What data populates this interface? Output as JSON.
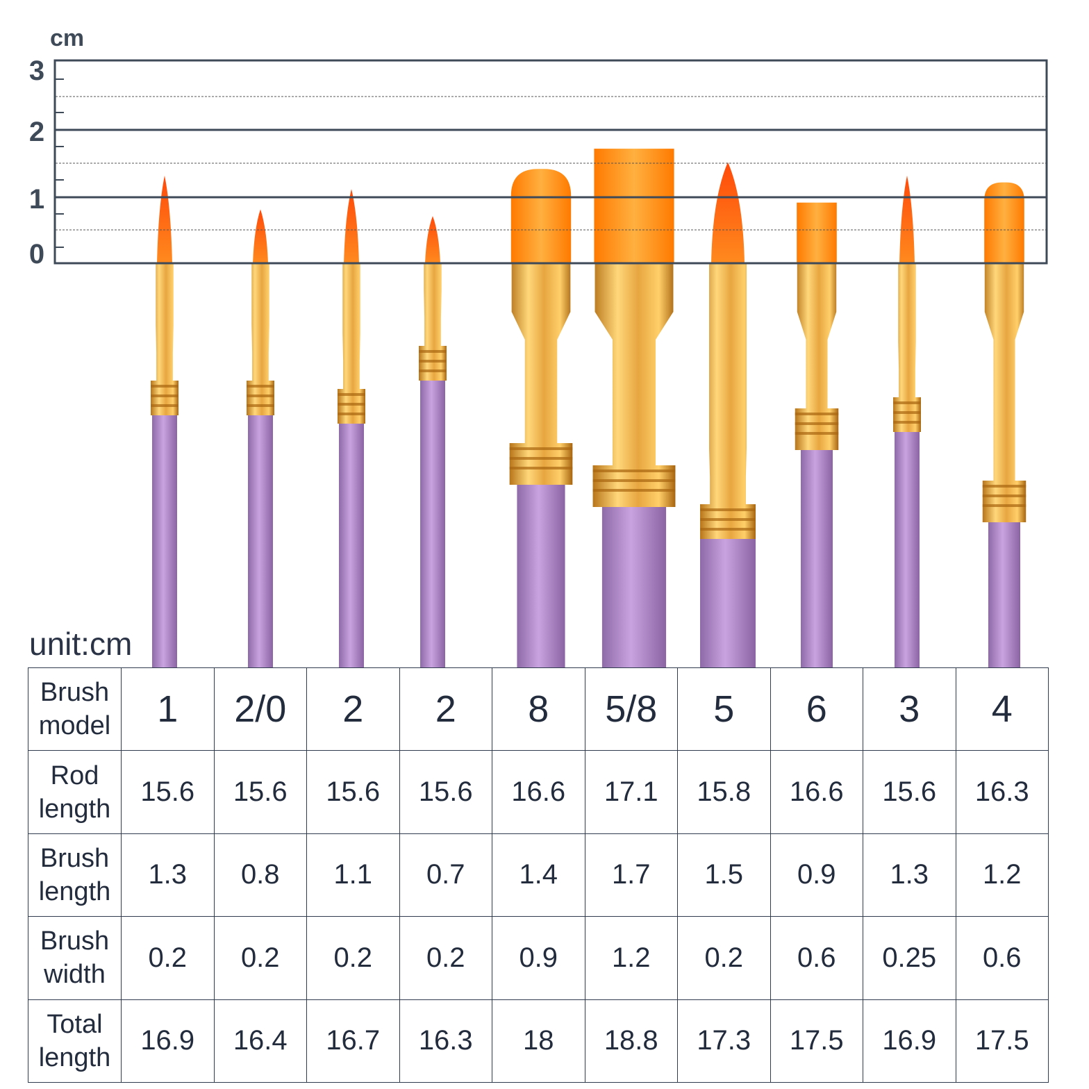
{
  "scale": {
    "unit_label": "cm",
    "tick_labels": [
      "0",
      "1",
      "2",
      "3"
    ]
  },
  "unit_note": "unit:cm",
  "colors": {
    "frame": "#3f4a59",
    "bristle": "#ff8c1a",
    "bristle_tip": "#ff5a12",
    "ferrule": "#e0a33a",
    "handle": "#b58fcc"
  },
  "table": {
    "rows": [
      {
        "label": [
          "Brush",
          "model"
        ],
        "values": [
          "1",
          "2/0",
          "2",
          "2",
          "8",
          "5/8",
          "5",
          "6",
          "3",
          "4"
        ]
      },
      {
        "label": [
          "Rod",
          "length"
        ],
        "values": [
          "15.6",
          "15.6",
          "15.6",
          "15.6",
          "16.6",
          "17.1",
          "15.8",
          "16.6",
          "15.6",
          "16.3"
        ]
      },
      {
        "label": [
          "Brush",
          "length"
        ],
        "values": [
          "1.3",
          "0.8",
          "1.1",
          "0.7",
          "1.4",
          "1.7",
          "1.5",
          "0.9",
          "1.3",
          "1.2"
        ]
      },
      {
        "label": [
          "Brush",
          "width"
        ],
        "values": [
          "0.2",
          "0.2",
          "0.2",
          "0.2",
          "0.9",
          "1.2",
          "0.2",
          "0.6",
          "0.25",
          "0.6"
        ]
      },
      {
        "label": [
          "Total",
          "length"
        ],
        "values": [
          "16.9",
          "16.4",
          "16.7",
          "16.3",
          "18",
          "18.8",
          "17.3",
          "17.5",
          "16.9",
          "17.5"
        ]
      }
    ]
  },
  "brushes": [
    {
      "model": "1",
      "shape": "round",
      "brush_length_cm": 1.3,
      "brush_width_cm": 0.2
    },
    {
      "model": "2/0",
      "shape": "round",
      "brush_length_cm": 0.8,
      "brush_width_cm": 0.2
    },
    {
      "model": "2",
      "shape": "round",
      "brush_length_cm": 1.1,
      "brush_width_cm": 0.2
    },
    {
      "model": "2",
      "shape": "round",
      "brush_length_cm": 0.7,
      "brush_width_cm": 0.2
    },
    {
      "model": "8",
      "shape": "filbert",
      "brush_length_cm": 1.4,
      "brush_width_cm": 0.9
    },
    {
      "model": "5/8",
      "shape": "flat",
      "brush_length_cm": 1.7,
      "brush_width_cm": 1.2
    },
    {
      "model": "5",
      "shape": "round",
      "brush_length_cm": 1.5,
      "brush_width_cm": 0.2
    },
    {
      "model": "6",
      "shape": "flat",
      "brush_length_cm": 0.9,
      "brush_width_cm": 0.6
    },
    {
      "model": "3",
      "shape": "round",
      "brush_length_cm": 1.3,
      "brush_width_cm": 0.25
    },
    {
      "model": "4",
      "shape": "filbert",
      "brush_length_cm": 1.2,
      "brush_width_cm": 0.6
    }
  ]
}
